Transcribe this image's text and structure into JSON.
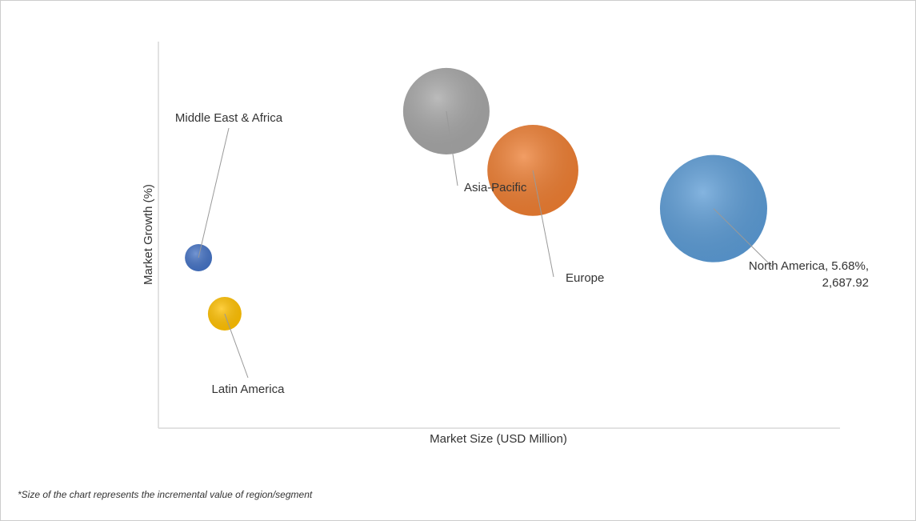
{
  "chart_data": {
    "type": "bubble",
    "x_label": "Market Size (USD Million)",
    "y_label": "Market Growth (%)",
    "footnote": "*Size of the chart represents the incremental value of region/segment",
    "xlim": [
      0,
      3300
    ],
    "ylim": [
      0,
      10
    ],
    "points": [
      {
        "label_lines": [
          "North America, 5.68%,",
          "2,687.92"
        ],
        "x": 2687.92,
        "y": 5.68,
        "size": 100,
        "color": "#5b9bd5"
      },
      {
        "label_lines": [
          "Asia-Pacific"
        ],
        "x": 1394,
        "y": 8.2,
        "size": 65,
        "color": "#a5a5a5"
      },
      {
        "label_lines": [
          "Europe"
        ],
        "x": 1813,
        "y": 6.67,
        "size": 72,
        "color": "#ed7d31"
      },
      {
        "label_lines": [
          "Middle East & Africa"
        ],
        "x": 194,
        "y": 4.41,
        "size": 6.4,
        "color": "#4472c4"
      },
      {
        "label_lines": [
          "Latin America"
        ],
        "x": 321,
        "y": 2.96,
        "size": 9.8,
        "color": "#ffc000"
      }
    ]
  }
}
